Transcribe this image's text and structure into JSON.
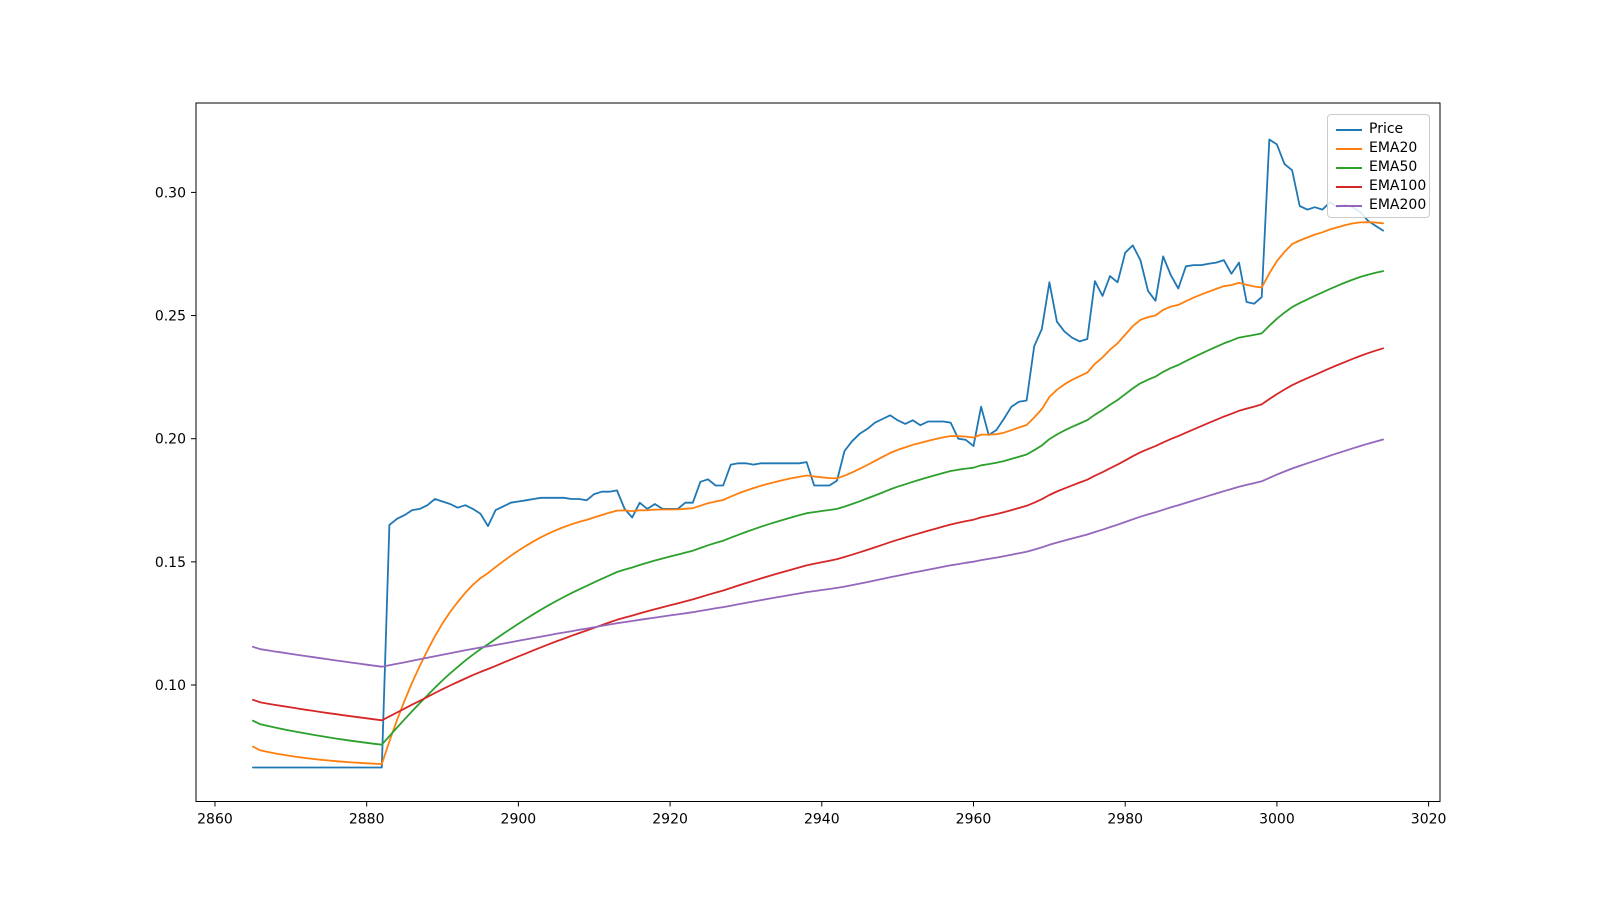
{
  "chart_data": {
    "type": "line",
    "title": "",
    "xlabel": "",
    "ylabel": "",
    "grid": false,
    "legend_position": "upper right",
    "xlim": [
      2857.5,
      3021.5
    ],
    "ylim": [
      0.0527,
      0.3363
    ],
    "x_ticks": [
      {
        "value": 2860,
        "label": "2860"
      },
      {
        "value": 2880,
        "label": "2880"
      },
      {
        "value": 2900,
        "label": "2900"
      },
      {
        "value": 2920,
        "label": "2920"
      },
      {
        "value": 2940,
        "label": "2940"
      },
      {
        "value": 2960,
        "label": "2960"
      },
      {
        "value": 2980,
        "label": "2980"
      },
      {
        "value": 3000,
        "label": "3000"
      },
      {
        "value": 3020,
        "label": "3020"
      }
    ],
    "y_ticks": [
      {
        "value": 0.1,
        "label": "0.10"
      },
      {
        "value": 0.15,
        "label": "0.15"
      },
      {
        "value": 0.2,
        "label": "0.20"
      },
      {
        "value": 0.25,
        "label": "0.25"
      },
      {
        "value": 0.3,
        "label": "0.30"
      }
    ],
    "x_start": 2865,
    "x_step": 1,
    "series": [
      {
        "name": "Price",
        "color": "#1f77b4",
        "kind": "raw",
        "values": [
          0.0665,
          0.0665,
          0.0665,
          0.0665,
          0.0665,
          0.0665,
          0.0665,
          0.0665,
          0.0665,
          0.0665,
          0.0665,
          0.0665,
          0.0665,
          0.0665,
          0.0665,
          0.0665,
          0.0665,
          0.0665,
          0.165,
          0.1675,
          0.169,
          0.171,
          0.1715,
          0.173,
          0.1755,
          0.1745,
          0.1735,
          0.172,
          0.173,
          0.1715,
          0.1695,
          0.1645,
          0.171,
          0.1725,
          0.174,
          0.1745,
          0.175,
          0.1755,
          0.176,
          0.176,
          0.176,
          0.176,
          0.1755,
          0.1755,
          0.175,
          0.1775,
          0.1785,
          0.1785,
          0.179,
          0.1715,
          0.168,
          0.174,
          0.1715,
          0.1735,
          0.1715,
          0.1715,
          0.1715,
          0.174,
          0.174,
          0.1825,
          0.1835,
          0.181,
          0.181,
          0.1895,
          0.19,
          0.19,
          0.1895,
          0.19,
          0.19,
          0.19,
          0.19,
          0.19,
          0.19,
          0.1905,
          0.181,
          0.181,
          0.181,
          0.183,
          0.195,
          0.199,
          0.202,
          0.204,
          0.2065,
          0.208,
          0.2095,
          0.2075,
          0.206,
          0.2075,
          0.2055,
          0.207,
          0.207,
          0.207,
          0.2065,
          0.2,
          0.1995,
          0.197,
          0.213,
          0.2015,
          0.2035,
          0.208,
          0.213,
          0.215,
          0.2155,
          0.2375,
          0.2445,
          0.2635,
          0.2475,
          0.2435,
          0.241,
          0.2395,
          0.2405,
          0.264,
          0.258,
          0.266,
          0.2635,
          0.2755,
          0.2785,
          0.2725,
          0.26,
          0.256,
          0.274,
          0.2665,
          0.261,
          0.27,
          0.2705,
          0.2705,
          0.271,
          0.2715,
          0.2725,
          0.267,
          0.2715,
          0.2555,
          0.2548,
          0.2575,
          0.3215,
          0.3195,
          0.3115,
          0.309,
          0.2945,
          0.293,
          0.294,
          0.293,
          0.296,
          0.294,
          0.295,
          0.294,
          0.292,
          0.2885,
          0.2865,
          0.2845
        ]
      },
      {
        "name": "EMA20",
        "color": "#ff7f0e",
        "kind": "ema",
        "period": 20,
        "seed": 0.075,
        "start_value": 0.075,
        "min_value": 0.069,
        "end_value": 0.288
      },
      {
        "name": "EMA50",
        "color": "#2ca02c",
        "kind": "ema",
        "period": 50,
        "seed": 0.0855,
        "start_value": 0.0855,
        "min_value": 0.0767,
        "end_value": 0.27
      },
      {
        "name": "EMA100",
        "color": "#d62728",
        "kind": "ema",
        "period": 100,
        "seed": 0.094,
        "start_value": 0.094,
        "min_value": 0.086,
        "end_value": 0.237
      },
      {
        "name": "EMA200",
        "color": "#9467bd",
        "kind": "ema",
        "period": 200,
        "seed": 0.1155,
        "start_value": 0.1155,
        "min_value": 0.108,
        "end_value": 0.199
      }
    ]
  },
  "legend": {
    "items": [
      {
        "label": "Price"
      },
      {
        "label": "EMA20"
      },
      {
        "label": "EMA50"
      },
      {
        "label": "EMA100"
      },
      {
        "label": "EMA200"
      }
    ]
  }
}
